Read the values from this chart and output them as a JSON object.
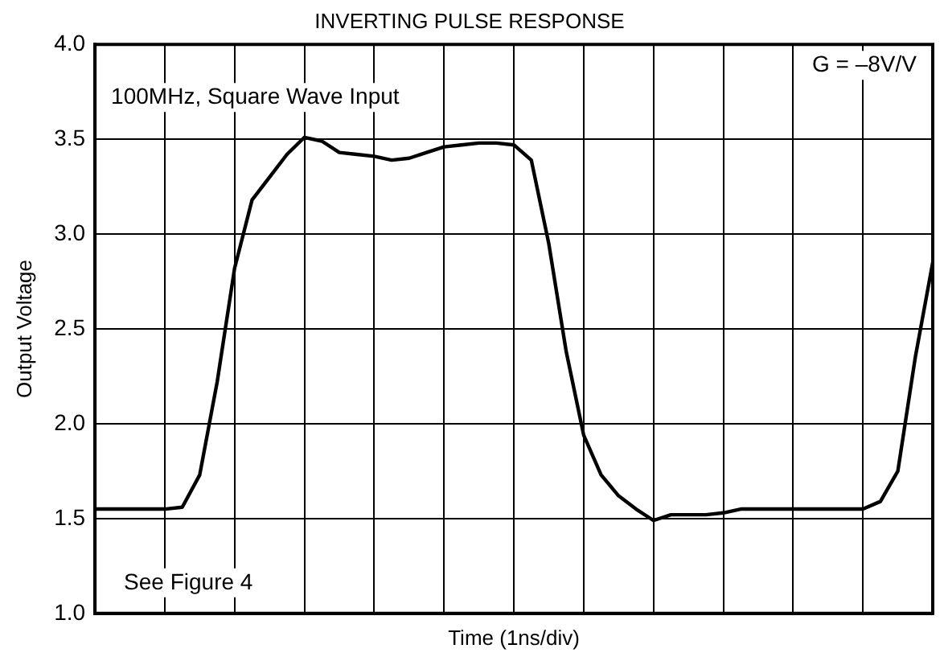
{
  "chart_data": {
    "type": "line",
    "title": "INVERTING PULSE RESPONSE",
    "xlabel": "Time (1ns/div)",
    "ylabel": "Output Voltage",
    "annotations": [
      "100MHz, Square Wave Input",
      "G = –8V/V",
      "See Figure 4"
    ],
    "categories": [
      null,
      null,
      null,
      null,
      null,
      null,
      null,
      null,
      null,
      null,
      null,
      null,
      null,
      null,
      null,
      null,
      null,
      null,
      null,
      null,
      null,
      null,
      null,
      null,
      null,
      null,
      null,
      null,
      null,
      null,
      null,
      null,
      null,
      null,
      null,
      null,
      null,
      null,
      null,
      null,
      null,
      null,
      null,
      null,
      null,
      null,
      null,
      null,
      null
    ],
    "series": [
      {
        "color": "#000000",
        "values": [
          1.55,
          1.55,
          1.55,
          1.55,
          1.55,
          1.56,
          1.73,
          2.22,
          2.82,
          3.18,
          3.3,
          3.42,
          3.51,
          3.49,
          3.43,
          3.42,
          3.41,
          3.39,
          3.4,
          3.43,
          3.46,
          3.47,
          3.48,
          3.48,
          3.47,
          3.39,
          2.95,
          2.38,
          1.94,
          1.73,
          1.62,
          1.55,
          1.49,
          1.52,
          1.52,
          1.52,
          1.53,
          1.55,
          1.55,
          1.55,
          1.55,
          1.55,
          1.55,
          1.55,
          1.55,
          1.59,
          1.75,
          2.35,
          2.85
        ]
      }
    ],
    "ylim": [
      1.0,
      4.0
    ],
    "yticks": [
      {
        "value": 1,
        "label": "1.0"
      },
      {
        "value": 1.5,
        "label": "1.5"
      },
      {
        "value": 2,
        "label": "2.0"
      },
      {
        "value": 2.5,
        "label": "2.5"
      },
      {
        "value": 3,
        "label": "3.0"
      },
      {
        "value": 3.5,
        "label": "3.5"
      },
      {
        "value": 4,
        "label": "4.0"
      }
    ],
    "grid": true,
    "tick_labels": "y",
    "legend": false,
    "marker": "none",
    "line_style": "solid"
  }
}
